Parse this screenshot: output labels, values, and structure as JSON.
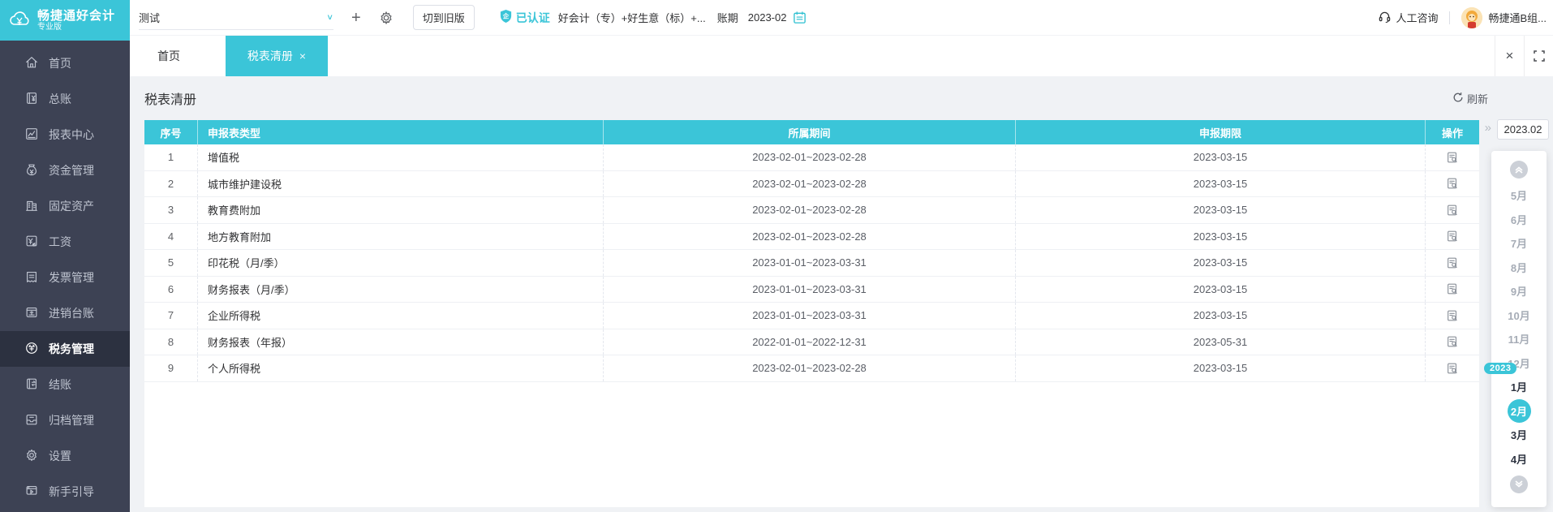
{
  "colors": {
    "accent": "#3bc5d8",
    "sidebar_bg": "#3d4254",
    "table_header_bg": "#3bc5d8"
  },
  "brand": {
    "name": "畅捷通好会计",
    "edition": "专业版",
    "logo_icon": "cloud-yuan-icon"
  },
  "header": {
    "account_select": {
      "value": "测试",
      "chevron_icon": "chevron-down-icon"
    },
    "add_icon": "plus-icon",
    "settings_icon": "gear-icon",
    "switch_old_label": "切到旧版",
    "certified_badge": {
      "label": "已认证",
      "icon": "shield-enterprise-icon"
    },
    "products": "好会计（专）+好生意（标）+...",
    "period_label": "账期",
    "period_value": "2023-02",
    "calendar_icon": "calendar-icon",
    "support": {
      "label": "人工咨询",
      "icon": "headset-icon"
    },
    "user": {
      "name": "畅捷通B组...",
      "avatar_icon": "monkey-avatar"
    }
  },
  "sidebar": {
    "items": [
      {
        "icon": "home-icon",
        "label": "首页",
        "active": false
      },
      {
        "icon": "ledger-icon",
        "label": "总账",
        "active": false
      },
      {
        "icon": "report-icon",
        "label": "报表中心",
        "active": false
      },
      {
        "icon": "funds-icon",
        "label": "资金管理",
        "active": false
      },
      {
        "icon": "fixed-asset-icon",
        "label": "固定资产",
        "active": false
      },
      {
        "icon": "payroll-icon",
        "label": "工资",
        "active": false
      },
      {
        "icon": "invoice-icon",
        "label": "发票管理",
        "active": false
      },
      {
        "icon": "trade-ledger-icon",
        "label": "进销台账",
        "active": false
      },
      {
        "icon": "tax-icon",
        "label": "税务管理",
        "active": true
      },
      {
        "icon": "closing-icon",
        "label": "结账",
        "active": false
      },
      {
        "icon": "archive-icon",
        "label": "归档管理",
        "active": false
      },
      {
        "icon": "settings-icon",
        "label": "设置",
        "active": false
      },
      {
        "icon": "guide-icon",
        "label": "新手引导",
        "active": false
      }
    ]
  },
  "tabs": {
    "home": {
      "label": "首页"
    },
    "active": {
      "label": "税表清册",
      "close_icon": "close-icon"
    },
    "close_icon": "close-icon",
    "fullscreen_icon": "fullscreen-icon"
  },
  "page": {
    "title": "税表清册",
    "refresh_label": "刷新",
    "refresh_icon": "refresh-icon"
  },
  "table": {
    "columns": [
      {
        "label": "序号"
      },
      {
        "label": "申报表类型"
      },
      {
        "label": "所属期间"
      },
      {
        "label": "申报期限"
      },
      {
        "label": "操作"
      }
    ],
    "op_icon": "view-report-icon",
    "rows": [
      {
        "seq": "1",
        "type": "增值税",
        "period": "2023-02-01~2023-02-28",
        "deadline": "2023-03-15"
      },
      {
        "seq": "2",
        "type": "城市维护建设税",
        "period": "2023-02-01~2023-02-28",
        "deadline": "2023-03-15"
      },
      {
        "seq": "3",
        "type": "教育费附加",
        "period": "2023-02-01~2023-02-28",
        "deadline": "2023-03-15"
      },
      {
        "seq": "4",
        "type": "地方教育附加",
        "period": "2023-02-01~2023-02-28",
        "deadline": "2023-03-15"
      },
      {
        "seq": "5",
        "type": "印花税（月/季）",
        "period": "2023-01-01~2023-03-31",
        "deadline": "2023-03-15"
      },
      {
        "seq": "6",
        "type": "财务报表（月/季）",
        "period": "2023-01-01~2023-03-31",
        "deadline": "2023-03-15"
      },
      {
        "seq": "7",
        "type": "企业所得税",
        "period": "2023-01-01~2023-03-31",
        "deadline": "2023-03-15"
      },
      {
        "seq": "8",
        "type": "财务报表（年报）",
        "period": "2022-01-01~2022-12-31",
        "deadline": "2023-05-31"
      },
      {
        "seq": "9",
        "type": "个人所得税",
        "period": "2023-02-01~2023-02-28",
        "deadline": "2023-03-15"
      }
    ]
  },
  "month_panel": {
    "collapse_icon": "double-chevron-right-icon",
    "current_period": "2023.02",
    "scroll_up_icon": "double-chevron-up-icon",
    "scroll_down_icon": "double-chevron-down-icon",
    "year_badge": "2023",
    "months": [
      {
        "label": "5月",
        "muted": true,
        "selected": false
      },
      {
        "label": "6月",
        "muted": true,
        "selected": false
      },
      {
        "label": "7月",
        "muted": true,
        "selected": false
      },
      {
        "label": "8月",
        "muted": true,
        "selected": false
      },
      {
        "label": "9月",
        "muted": true,
        "selected": false
      },
      {
        "label": "10月",
        "muted": true,
        "selected": false
      },
      {
        "label": "11月",
        "muted": true,
        "selected": false
      },
      {
        "label": "12月",
        "muted": true,
        "selected": false
      },
      {
        "label": "1月",
        "muted": false,
        "selected": false
      },
      {
        "label": "2月",
        "muted": false,
        "selected": true
      },
      {
        "label": "3月",
        "muted": false,
        "selected": false
      },
      {
        "label": "4月",
        "muted": false,
        "selected": false
      }
    ]
  }
}
